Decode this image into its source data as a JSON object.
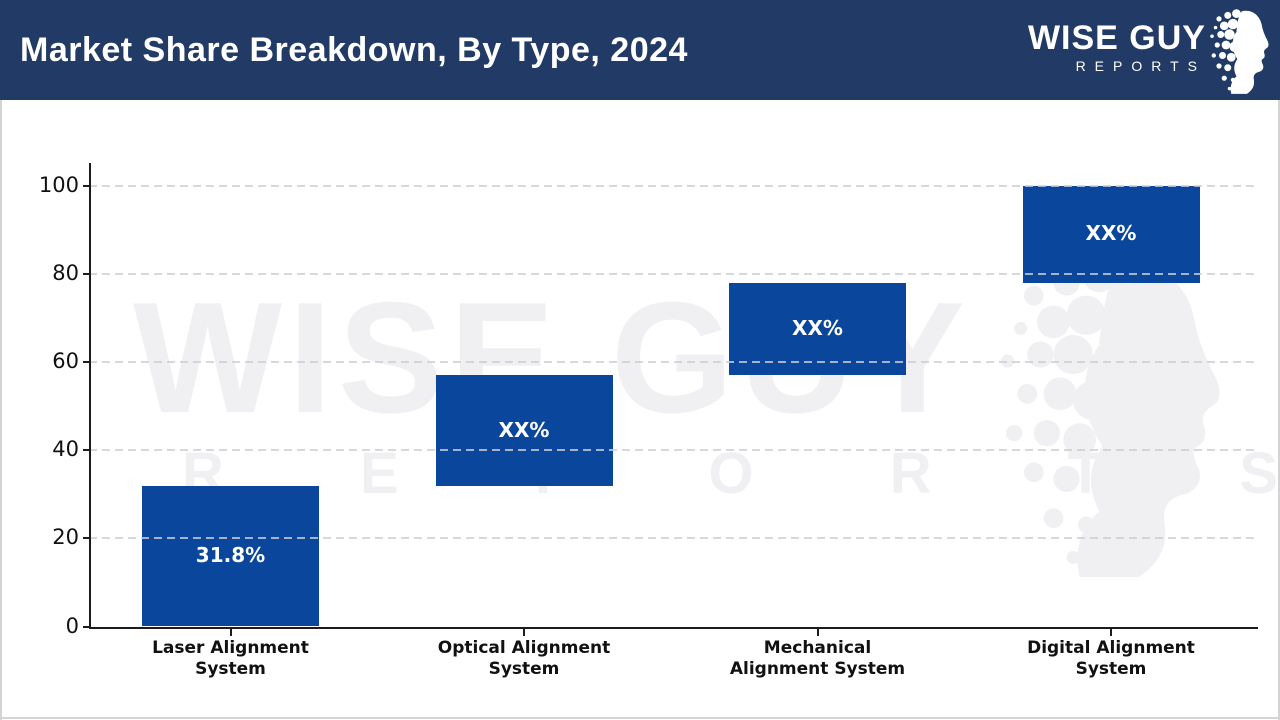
{
  "header": {
    "title": "Market Share Breakdown, By Type, 2024",
    "logo": {
      "line1": "WISE GUY",
      "line2": "REPORTS",
      "icon": "face-profile-dots-icon"
    }
  },
  "watermark": {
    "line1": "WISE GUY",
    "line2": "R E P O R T S",
    "icon": "face-profile-dots-icon"
  },
  "colors": {
    "header_bg": "#213a66",
    "bar": "#0a469b",
    "bar_label": "#ffffff",
    "grid": "#d2d3d8",
    "axis": "#1c1c1c",
    "watermark": "#f0f0f3"
  },
  "chart_data": {
    "type": "bar",
    "subtype": "waterfall",
    "title": "Market Share Breakdown, By Type, 2024",
    "xlabel": "",
    "ylabel": "",
    "categories": [
      "Laser Alignment System",
      "Optical Alignment System",
      "Mechanical Alignment System",
      "Digital Alignment System"
    ],
    "category_lines": [
      [
        "Laser Alignment",
        "System"
      ],
      [
        "Optical Alignment",
        "System"
      ],
      [
        "Mechanical",
        "Alignment System"
      ],
      [
        "Digital Alignment",
        "System"
      ]
    ],
    "segments": [
      {
        "start": 0,
        "end": 31.8,
        "label": "31.8%"
      },
      {
        "start": 31.8,
        "end": 57,
        "label": "XX%"
      },
      {
        "start": 57,
        "end": 78,
        "label": "XX%"
      },
      {
        "start": 78,
        "end": 100,
        "label": "XX%"
      }
    ],
    "yticks": [
      0,
      20,
      40,
      60,
      80,
      100
    ],
    "ylim": [
      0,
      105
    ],
    "grid": true,
    "legend": false
  }
}
